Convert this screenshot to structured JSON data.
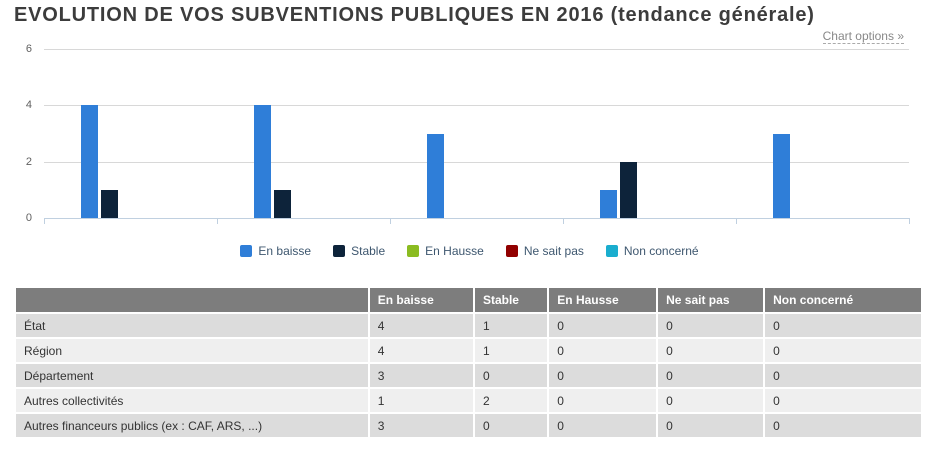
{
  "header": {
    "chart_options_label": "Chart options »"
  },
  "colors": {
    "series_palette": [
      "#2f7ed8",
      "#0d233a",
      "#8bbc21",
      "#910000",
      "#1aadce"
    ],
    "grid_line": "#d8d8d8",
    "axis_line": "#c0d0e0",
    "table_header_bg": "#7d7d7d",
    "row_odd_bg": "#dcdcdc",
    "row_even_bg": "#efefef",
    "legend_text": "#3e576f",
    "axis_label_text": "#606060"
  },
  "chart_data": {
    "type": "bar",
    "title": "EVOLUTION DE VOS SUBVENTIONS PUBLIQUES EN 2016 (tendance générale)",
    "categories": [
      "État",
      "Région",
      "Département",
      "Autres collectivités",
      "Autres financeurs publics (ex : CAF, ARS, ...)"
    ],
    "series": [
      {
        "name": "En baisse",
        "color": "#2f7ed8",
        "values": [
          4,
          4,
          3,
          1,
          3
        ]
      },
      {
        "name": "Stable",
        "color": "#0d233a",
        "values": [
          1,
          1,
          0,
          2,
          0
        ]
      },
      {
        "name": "En Hausse",
        "color": "#8bbc21",
        "values": [
          0,
          0,
          0,
          0,
          0
        ]
      },
      {
        "name": "Ne sait pas",
        "color": "#910000",
        "values": [
          0,
          0,
          0,
          0,
          0
        ]
      },
      {
        "name": "Non concerné",
        "color": "#1aadce",
        "values": [
          0,
          0,
          0,
          0,
          0
        ]
      }
    ],
    "ylim": [
      0,
      6
    ],
    "yticks": [
      0,
      2,
      4,
      6
    ],
    "xlabel": "",
    "ylabel": "",
    "x_tick_labels_visible": false,
    "grid": true,
    "legend_position": "bottom"
  },
  "table": {
    "columns": [
      "",
      "En baisse",
      "Stable",
      "En Hausse",
      "Ne sait pas",
      "Non concerné"
    ],
    "rows": [
      {
        "label": "État",
        "values": [
          4,
          1,
          0,
          0,
          0
        ]
      },
      {
        "label": "Région",
        "values": [
          4,
          1,
          0,
          0,
          0
        ]
      },
      {
        "label": "Département",
        "values": [
          3,
          0,
          0,
          0,
          0
        ]
      },
      {
        "label": "Autres collectivités",
        "values": [
          1,
          2,
          0,
          0,
          0
        ]
      },
      {
        "label": "Autres financeurs publics (ex : CAF, ARS, ...)",
        "values": [
          3,
          0,
          0,
          0,
          0
        ]
      }
    ]
  }
}
